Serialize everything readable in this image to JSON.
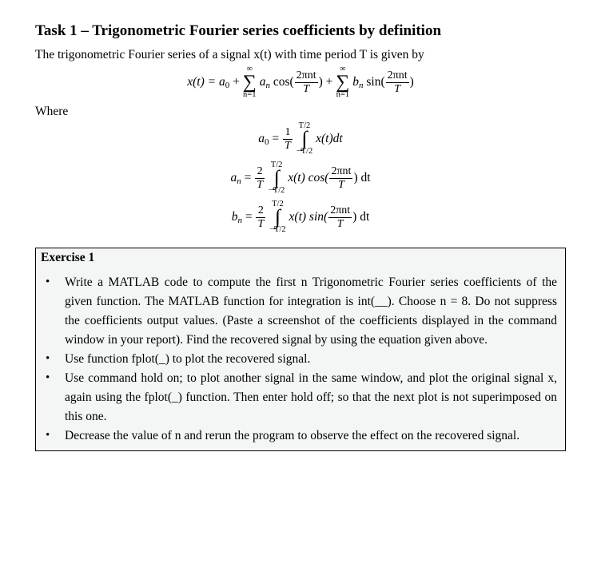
{
  "title": "Task 1 – Trigonometric Fourier series coefficients by definition",
  "intro": "The trigonometric Fourier series of a signal x(t) with time period T is given by",
  "where": "Where",
  "eq_main": {
    "lhs": "x(t) = a",
    "a0sub": "0",
    "plus1": " + ",
    "sigma_top": "∞",
    "sigma_sym": "∑",
    "sigma_bot": "n=1",
    "an": "a",
    "an_sub": "n",
    "cos": " cos(",
    "frac_num": "2πnt",
    "frac_den": "T",
    "close_plus": ") + ",
    "bn": "b",
    "bn_sub": "n",
    "sin": " sin(",
    "close": ")"
  },
  "eq_a0": {
    "lhs": "a",
    "sub": "0",
    "eq": " = ",
    "frac_num": "1",
    "frac_den": "T",
    "int_top": "T/2",
    "int_sym": "∫",
    "int_bot": "−T/2",
    "body": " x(t)dt"
  },
  "eq_an": {
    "lhs": "a",
    "sub": "n",
    "eq": " = ",
    "frac_num": "2",
    "frac_den": "T",
    "int_top": "T/2",
    "int_sym": "∫",
    "int_bot": "−T/2",
    "body_pre": " x(t) cos(",
    "inner_num": "2πnt",
    "inner_den": "T",
    "body_post": ") dt"
  },
  "eq_bn": {
    "lhs": "b",
    "sub": "n",
    "eq": " = ",
    "frac_num": "2",
    "frac_den": "T",
    "int_top": "T/2",
    "int_sym": "∫",
    "int_bot": "−T/2",
    "body_pre": " x(t) sin(",
    "inner_num": "2πnt",
    "inner_den": "T",
    "body_post": ") dt"
  },
  "exercise_title": "Exercise 1",
  "bullets": [
    "Write a MATLAB code to compute the first n Trigonometric Fourier series coefficients of the given function. The MATLAB function for integration is int(__). Choose n = 8. Do not suppress the coefficients output values. (Paste a screenshot of the coefficients displayed in the command window in your report). Find the recovered signal by using the equation given above.",
    "Use function fplot(_) to plot the recovered signal.",
    "Use command hold on; to plot another signal in the same window, and plot the original signal x, again using the fplot(_) function. Then enter hold off; so that the next plot is not superimposed on this one.",
    "Decrease the value of n and rerun the program to observe the effect on the recovered signal."
  ]
}
